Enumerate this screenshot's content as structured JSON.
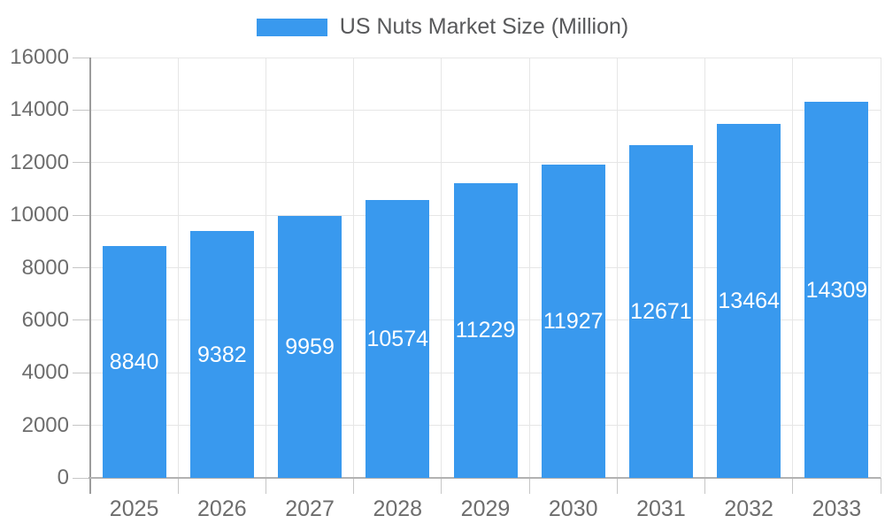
{
  "chart_data": {
    "type": "bar",
    "title": "",
    "legend": "US Nuts Market Size (Million)",
    "legend_position": "top-center",
    "categories": [
      "2025",
      "2026",
      "2027",
      "2028",
      "2029",
      "2030",
      "2031",
      "2032",
      "2033"
    ],
    "values": [
      8840,
      9382,
      9959,
      10574,
      11229,
      11927,
      12671,
      13464,
      14309
    ],
    "xlabel": "",
    "ylabel": "",
    "ylim": [
      0,
      16000
    ],
    "y_ticks": [
      0,
      2000,
      4000,
      6000,
      8000,
      10000,
      12000,
      14000,
      16000
    ],
    "y_tick_labels": [
      "0",
      "2000",
      "4000",
      "6000",
      "8000",
      "10000",
      "12000",
      "14000",
      "16000"
    ],
    "grid": {
      "horizontal": true,
      "vertical": true
    },
    "value_labels": {
      "visible": true,
      "position": "inside-center"
    },
    "colors": {
      "bar": "#3999ee",
      "value_label": "#ffffff"
    }
  }
}
